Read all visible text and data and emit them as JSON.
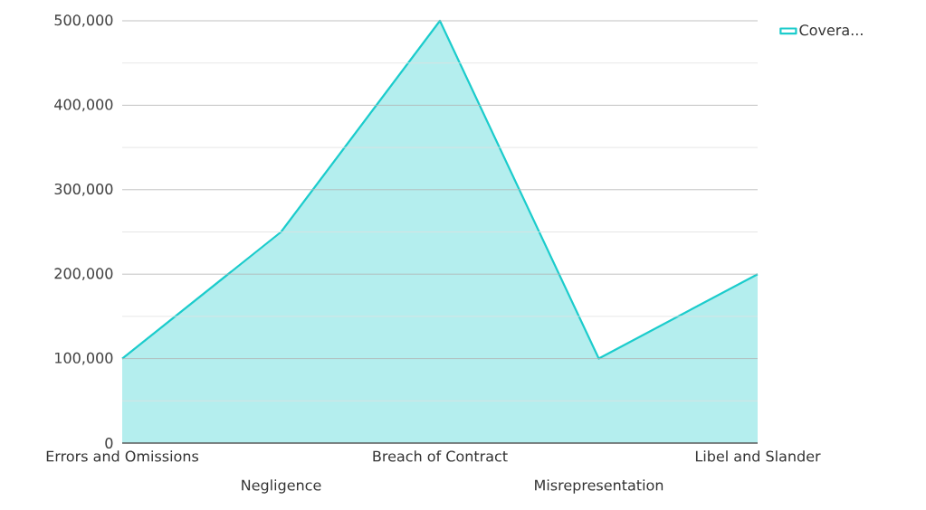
{
  "chart_data": {
    "type": "area",
    "categories": [
      "Errors and Omissions",
      "Negligence",
      "Breach of Contract",
      "Misrepresentation",
      "Libel and Slander"
    ],
    "series": [
      {
        "name": "Covera...",
        "color": "#1ccccc",
        "values": [
          100000,
          250000,
          500000,
          100000,
          200000
        ]
      }
    ],
    "ylim": [
      0,
      500000
    ],
    "yticks": [
      {
        "value": 0,
        "label": "0"
      },
      {
        "value": 50000,
        "label": null
      },
      {
        "value": 100000,
        "label": "100,000"
      },
      {
        "value": 150000,
        "label": null
      },
      {
        "value": 200000,
        "label": "200,000"
      },
      {
        "value": 250000,
        "label": null
      },
      {
        "value": 300000,
        "label": "300,000"
      },
      {
        "value": 350000,
        "label": null
      },
      {
        "value": 400000,
        "label": "400,000"
      },
      {
        "value": 450000,
        "label": null
      },
      {
        "value": 500000,
        "label": "500,000"
      }
    ],
    "grid": "y",
    "legend": "top right"
  }
}
